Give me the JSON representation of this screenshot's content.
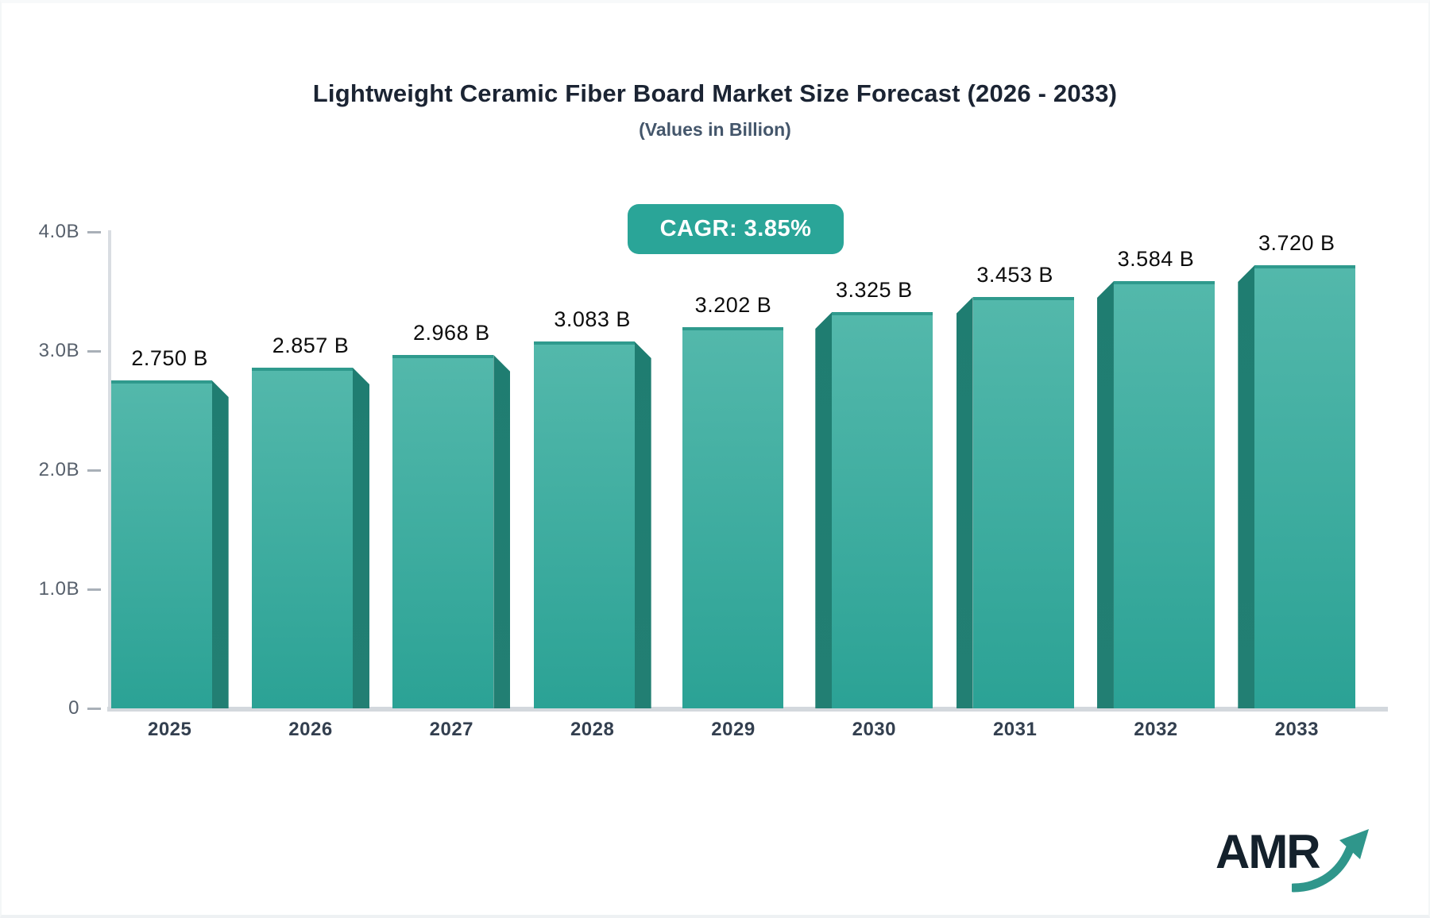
{
  "header": {
    "title": "Lightweight Ceramic Fiber Board Market Size Forecast (2026 - 2033)",
    "subtitle": "(Values in Billion)"
  },
  "badge": {
    "label": "CAGR: 3.85%"
  },
  "logo": {
    "text": "AMR",
    "arrow_icon": "growth-arrow-icon"
  },
  "colors": {
    "accent_teal": "#2aa598",
    "bar_face_top": "#53b8ab",
    "bar_face_bottom": "#2ba295",
    "bar_top_edge": "#2f9a8d",
    "bar_side_dark": "#1f7d71",
    "axis_line": "#d9dde2",
    "baseline": "#d3d8dd",
    "tick_dash": "#a9b0b8",
    "logo_arrow": "#2f968b"
  },
  "chart_data": {
    "type": "bar",
    "title": "Lightweight Ceramic Fiber Board Market Size Forecast (2026 - 2033)",
    "subtitle": "(Values in Billion)",
    "annotation": "CAGR: 3.85%",
    "categories": [
      "2025",
      "2026",
      "2027",
      "2028",
      "2029",
      "2030",
      "2031",
      "2032",
      "2033"
    ],
    "values": [
      2.75,
      2.857,
      2.968,
      3.083,
      3.202,
      3.325,
      3.453,
      3.584,
      3.72
    ],
    "value_labels": [
      "2.750 B",
      "2.857 B",
      "2.968 B",
      "3.083 B",
      "3.202 B",
      "3.325 B",
      "3.453 B",
      "3.584 B",
      "3.720 B"
    ],
    "xlabel": "",
    "ylabel": "",
    "ylim": [
      0,
      4
    ],
    "y_ticks": [
      {
        "value": 4,
        "label": "4.0B"
      },
      {
        "value": 3,
        "label": "3.0B"
      },
      {
        "value": 2,
        "label": "2.0B"
      },
      {
        "value": 1,
        "label": "1.0B"
      },
      {
        "value": 0,
        "label": "0"
      }
    ],
    "grid": false,
    "legend": false,
    "bar_style": "3d-extruded, perspective toward center bar"
  }
}
